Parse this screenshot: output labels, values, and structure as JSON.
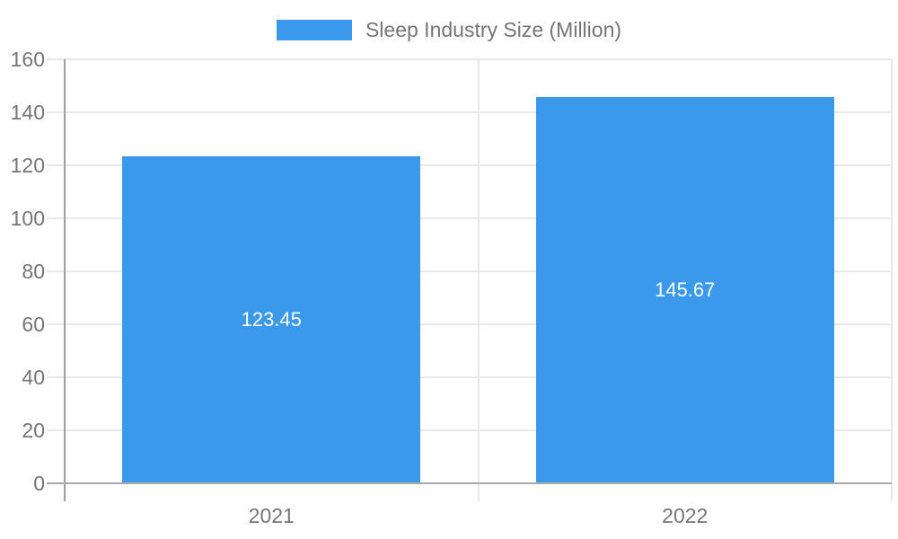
{
  "chart_data": {
    "type": "bar",
    "title": "Sleep Industry Size (Million)",
    "categories": [
      "2021",
      "2022"
    ],
    "series": [
      {
        "name": "Sleep Industry Size (Million)",
        "values": [
          123.45,
          145.67
        ],
        "data_labels": [
          "123.45",
          "145.67"
        ],
        "color": "#3B99EC"
      }
    ],
    "xlabel": "",
    "ylabel": "",
    "ylim": [
      0,
      160
    ],
    "y_ticks": [
      0,
      20,
      40,
      60,
      80,
      100,
      120,
      140,
      160
    ],
    "grid": true,
    "legend_position": "top"
  },
  "legend": {
    "label": "Sleep Industry Size (Million)",
    "swatch_color": "#3B99EC"
  },
  "colors": {
    "bar": "#3B99EC",
    "bar_label": "#FFFFFF",
    "axis_text": "#757575",
    "grid_line": "#E9E9E9",
    "axis_line": "#9E9E9E",
    "baseline": "#A9A9A9",
    "background": "#FFFFFF"
  }
}
